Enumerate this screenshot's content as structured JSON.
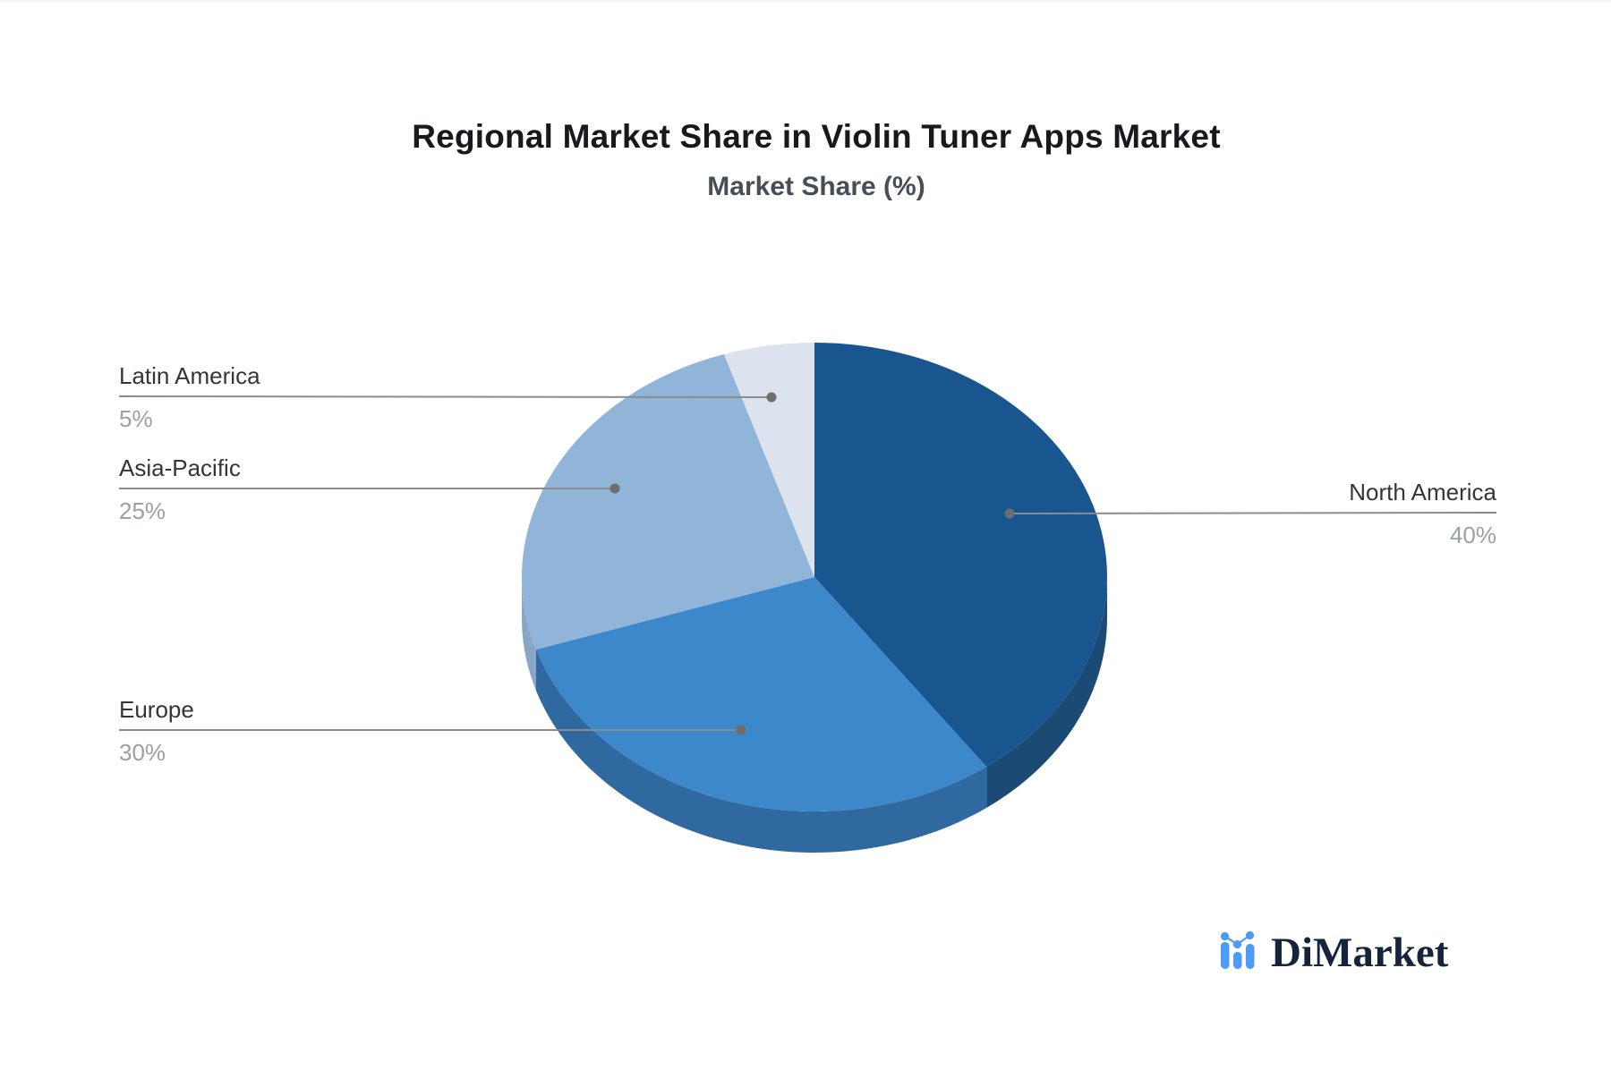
{
  "header": {
    "title": "Regional Market Share in Violin Tuner Apps Market",
    "subtitle": "Market Share (%)"
  },
  "chart_data": {
    "type": "pie",
    "style": "3d",
    "title": "Regional Market Share in Violin Tuner Apps Market",
    "subtitle": "Market Share (%)",
    "unit": "%",
    "direction": "clockwise",
    "start_angle_deg": 0,
    "legend_position": "callout-labels",
    "slices": [
      {
        "label": "North America",
        "value": 40,
        "value_text": "40%",
        "color": "#195690",
        "side_color": "#1b4a74"
      },
      {
        "label": "Europe",
        "value": 30,
        "value_text": "30%",
        "color": "#3c88cb",
        "side_color": "#30699f"
      },
      {
        "label": "Asia-Pacific",
        "value": 25,
        "value_text": "25%",
        "color": "#91b4d9",
        "side_color": "#87a6c8"
      },
      {
        "label": "Latin America",
        "value": 5,
        "value_text": "5%",
        "color": "#dde3ee",
        "side_color": "#c9d3e2"
      }
    ]
  },
  "branding": {
    "name": "DiMarket",
    "logo_icon": "bar-chart-logo-icon",
    "text_color": "#16233c",
    "accent_color": "#4d9bf5"
  },
  "colors": {
    "leader_line": "#8c8c8c",
    "leader_dot": "#6e6e6e",
    "title": "#17191d",
    "subtitle": "#474e57",
    "label_name": "#333639",
    "label_value": "#9aa0a6"
  }
}
